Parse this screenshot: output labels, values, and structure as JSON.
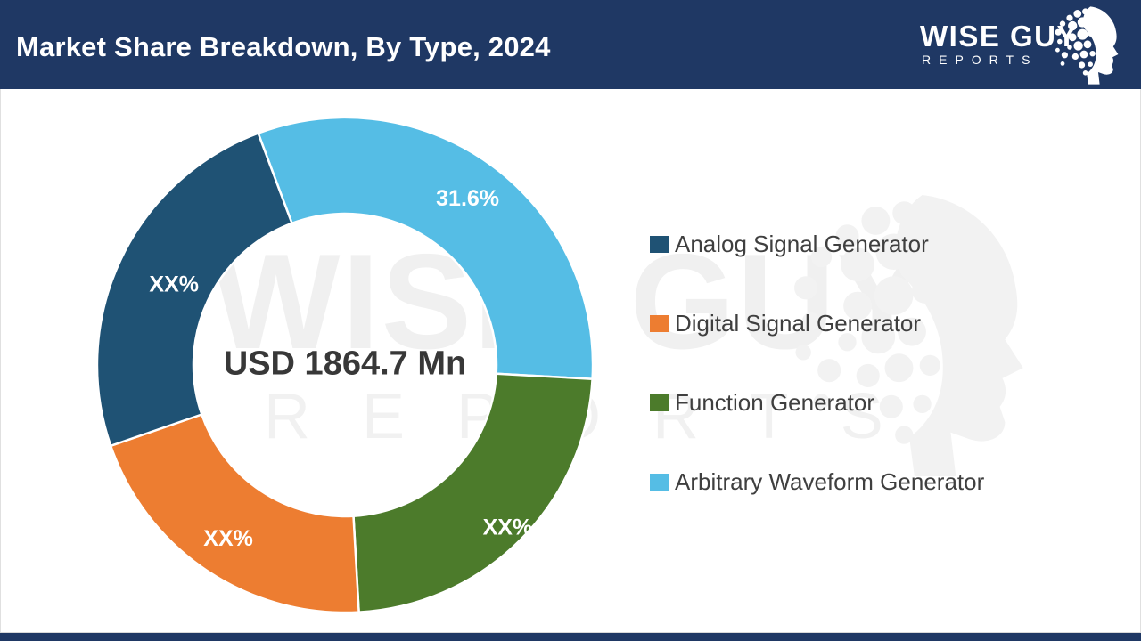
{
  "header": {
    "title": "Market Share Breakdown, By Type, 2024",
    "logo": {
      "brand": "WISE GUY",
      "subbrand": "REPORTS"
    }
  },
  "chart_data": {
    "type": "donut",
    "title": "Market Share Breakdown, By Type, 2024",
    "center_label": "USD 1864.7 Mn",
    "start_angle_deg": 339.5,
    "legend_position": "right",
    "slices": [
      {
        "label": "Arbitrary Waveform Generator",
        "value_pct": 31.6,
        "display_label": "31.6%",
        "color": "#55bde5"
      },
      {
        "label": "Function Generator",
        "value_pct": 23.2,
        "display_label": "XX%",
        "color": "#4c7b2b"
      },
      {
        "label": "Digital Signal Generator",
        "value_pct": 20.6,
        "display_label": "XX%",
        "color": "#ed7d31"
      },
      {
        "label": "Analog Signal Generator",
        "value_pct": 24.6,
        "display_label": "XX%",
        "color": "#1f5274"
      }
    ]
  },
  "legend": {
    "items": [
      {
        "label": "Analog Signal Generator",
        "color": "#1f5274"
      },
      {
        "label": "Digital Signal Generator",
        "color": "#ed7d31"
      },
      {
        "label": "Function Generator",
        "color": "#4c7b2b"
      },
      {
        "label": "Arbitrary Waveform Generator",
        "color": "#55bde5"
      }
    ]
  },
  "watermark": {
    "line1": "WISE GUY",
    "line2": "REPORTS"
  },
  "colors": {
    "header_bg": "#1f3864",
    "footer_bg": "#1f3864",
    "center_text": "#383838",
    "legend_text": "#3f3f3f",
    "slice_label_text": "#ffffff",
    "watermark_gray": "#f0f0f0"
  }
}
